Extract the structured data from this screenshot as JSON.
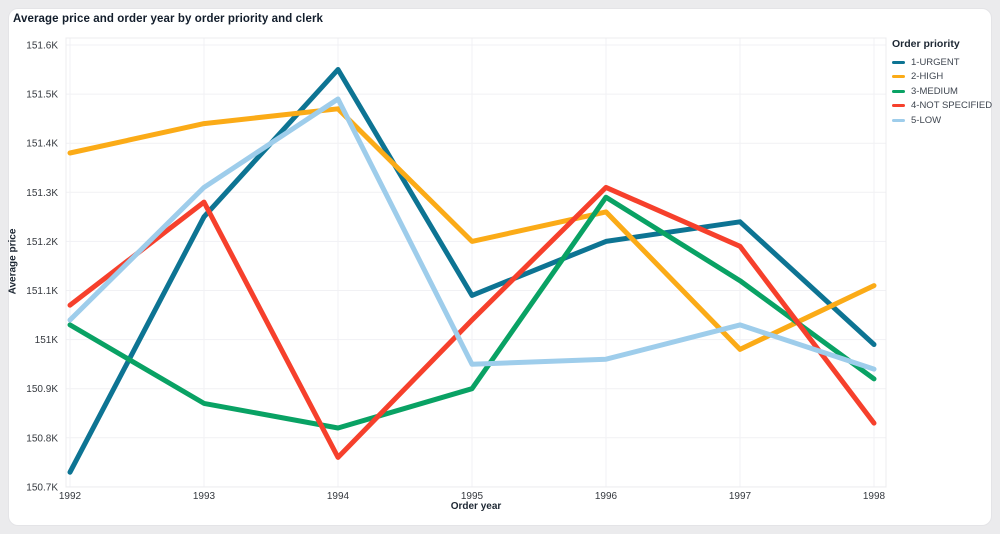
{
  "chart_data": {
    "type": "line",
    "title": "Average price and order year by order priority and clerk",
    "xlabel": "Order year",
    "ylabel": "Average price",
    "legend_title": "Order priority",
    "legend_position": "right",
    "grid": true,
    "unit": "K",
    "x": [
      1992,
      1993,
      1994,
      1995,
      1996,
      1997,
      1998
    ],
    "x_labels": [
      "1992",
      "1993",
      "1994",
      "1995",
      "1996",
      "1997",
      "1998"
    ],
    "ylim": [
      150.7,
      151.6
    ],
    "y_ticks": [
      {
        "v": 151.6,
        "label": "151.6K"
      },
      {
        "v": 151.5,
        "label": "151.5K"
      },
      {
        "v": 151.4,
        "label": "151.4K"
      },
      {
        "v": 151.3,
        "label": "151.3K"
      },
      {
        "v": 151.2,
        "label": "151.2K"
      },
      {
        "v": 151.1,
        "label": "151.1K"
      },
      {
        "v": 151.0,
        "label": "151K"
      },
      {
        "v": 150.9,
        "label": "150.9K"
      },
      {
        "v": 150.8,
        "label": "150.8K"
      },
      {
        "v": 150.7,
        "label": "150.7K"
      }
    ],
    "series": [
      {
        "name": "1-URGENT",
        "color": "#0d7493",
        "values": [
          150.73,
          151.25,
          151.55,
          151.09,
          151.2,
          151.24,
          150.99
        ]
      },
      {
        "name": "2-HIGH",
        "color": "#fbab17",
        "values": [
          151.38,
          151.44,
          151.47,
          151.2,
          151.26,
          150.98,
          151.11
        ]
      },
      {
        "name": "3-MEDIUM",
        "color": "#09a264",
        "values": [
          151.03,
          150.87,
          150.82,
          150.9,
          151.29,
          151.12,
          150.92
        ]
      },
      {
        "name": "4-NOT SPECIFIED",
        "color": "#f6402c",
        "values": [
          151.07,
          151.28,
          150.76,
          151.04,
          151.31,
          151.19,
          150.83
        ]
      },
      {
        "name": "5-LOW",
        "color": "#9ecdeb",
        "values": [
          151.04,
          151.31,
          151.49,
          150.95,
          150.96,
          151.03,
          150.94
        ]
      }
    ]
  }
}
